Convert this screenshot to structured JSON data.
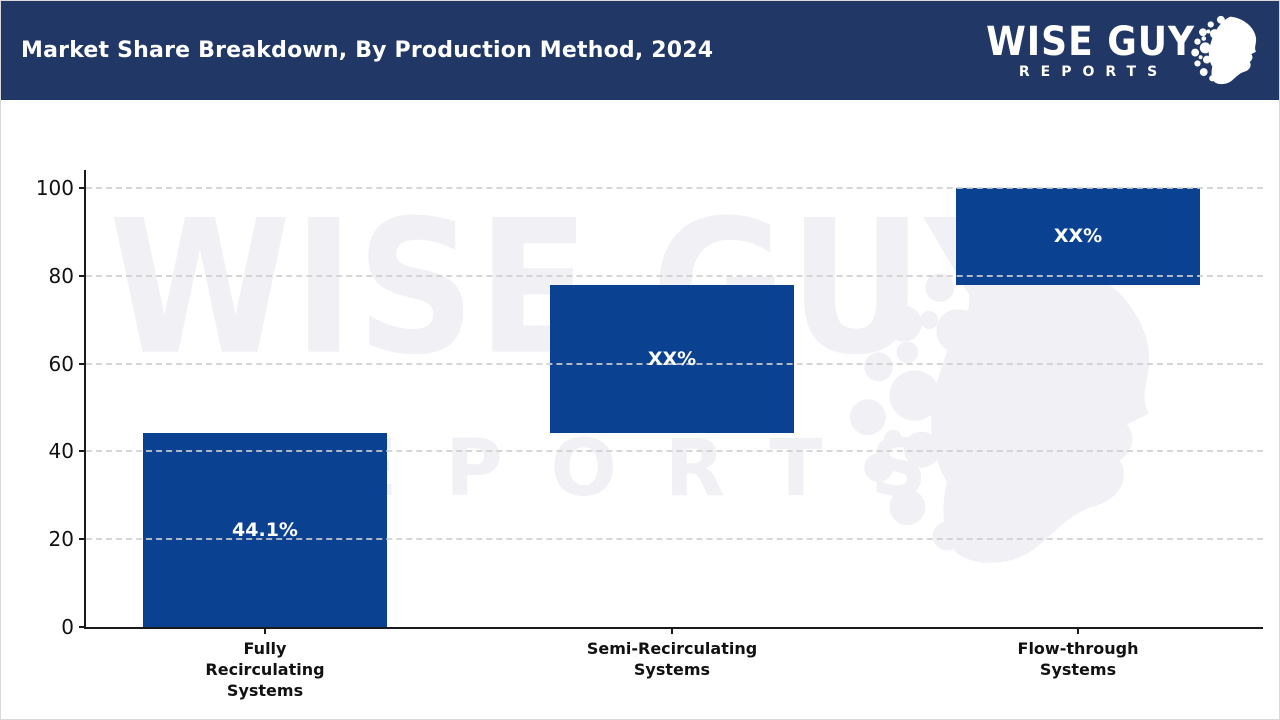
{
  "header": {
    "title": "Market Share Breakdown, By Production Method, 2024",
    "logo": {
      "wordmark": "WISE GUY",
      "subtext": "REPORTS"
    }
  },
  "watermark": {
    "wordmark": "WISE GUY",
    "subtext": "REPORTS"
  },
  "chart_data": {
    "type": "bar",
    "subtype": "waterfall",
    "title": "Market Share Breakdown, By Production Method, 2024",
    "categories": [
      "Fully Recirculating Systems",
      "Semi-Recirculating Systems",
      "Flow-through Systems"
    ],
    "category_lines": [
      [
        "Fully",
        "Recirculating",
        "Systems"
      ],
      [
        "Semi-Recirculating",
        "Systems"
      ],
      [
        "Flow-through",
        "Systems"
      ]
    ],
    "segments": [
      {
        "category": "Fully Recirculating Systems",
        "start": 0,
        "end": 44.1,
        "label": "44.1%"
      },
      {
        "category": "Semi-Recirculating Systems",
        "start": 44.1,
        "end": 78,
        "label": "XX%"
      },
      {
        "category": "Flow-through Systems",
        "start": 78,
        "end": 100,
        "label": "XX%"
      }
    ],
    "xlabel": "",
    "ylabel": "",
    "ylim": [
      0,
      100
    ],
    "yticks": [
      0,
      20,
      40,
      60,
      80,
      100
    ],
    "grid": {
      "horizontal": true,
      "style": "dashed",
      "drawn_over_bars": true
    },
    "legend": null,
    "colors": {
      "bar": "#0a4191",
      "bar_label": "#ffffff",
      "grid": "#cfcfcf",
      "axis": "#1a1a1a",
      "header_bg": "#213765",
      "watermark": "#f1f1f5"
    }
  }
}
